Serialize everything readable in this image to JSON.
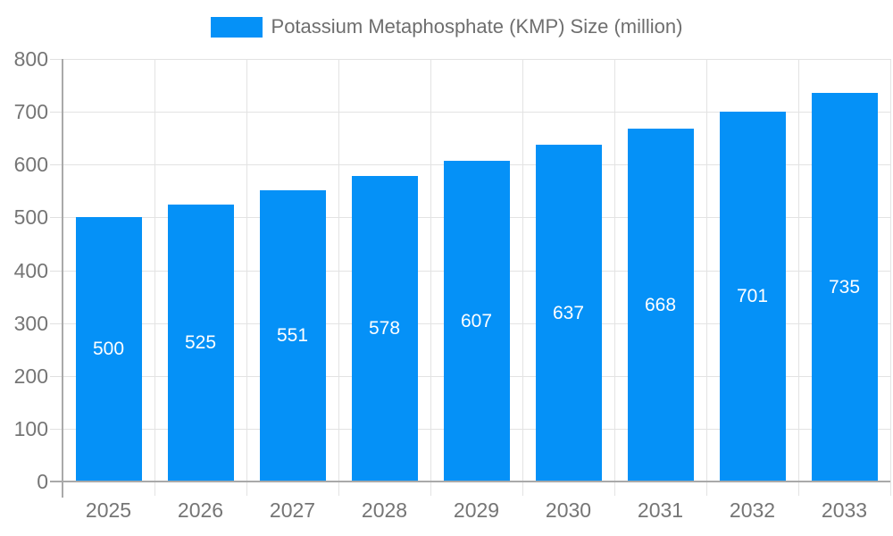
{
  "chart_data": {
    "type": "bar",
    "series_name": "Potassium Metaphosphate (KMP) Size (million)",
    "categories": [
      "2025",
      "2026",
      "2027",
      "2028",
      "2029",
      "2030",
      "2031",
      "2032",
      "2033"
    ],
    "values": [
      500,
      525,
      551,
      578,
      607,
      637,
      668,
      701,
      735
    ],
    "value_labels": [
      "500",
      "525",
      "551",
      "578",
      "607",
      "637",
      "668",
      "701",
      "735"
    ],
    "ylim": [
      0,
      800
    ],
    "ytick_step": 100,
    "ytick_labels": [
      "0",
      "100",
      "200",
      "300",
      "400",
      "500",
      "600",
      "700",
      "800"
    ],
    "grid": "on",
    "legend_position": "top",
    "colors": {
      "bar": "#0591f7",
      "value_label": "#ffffff",
      "gridline": "#e3e3e3",
      "axis": "#a9a9a9",
      "tick_label": "#757575",
      "legend_text": "#6e6e6e",
      "background": "#ffffff"
    }
  }
}
